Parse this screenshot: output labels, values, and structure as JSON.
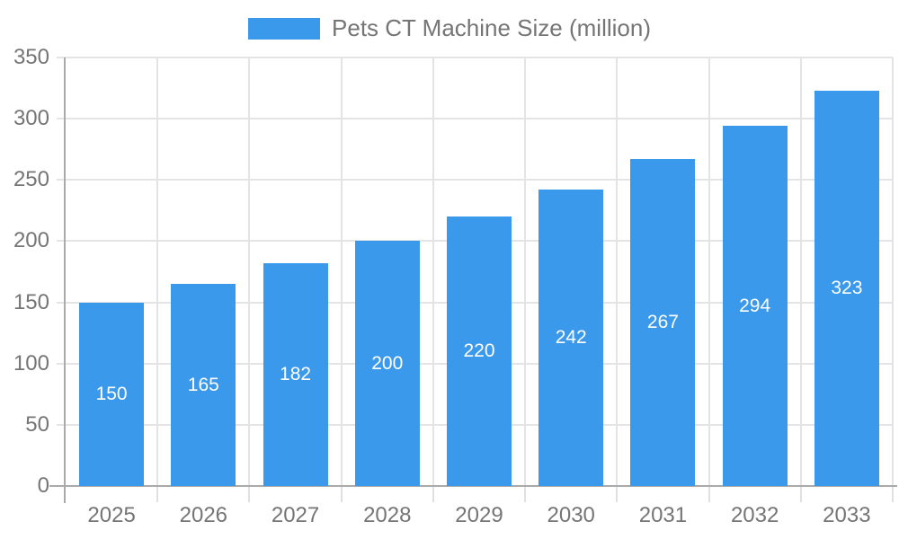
{
  "legend": {
    "label": "Pets CT Machine Size (million)"
  },
  "chart_data": {
    "type": "bar",
    "title": "",
    "categories": [
      "2025",
      "2026",
      "2027",
      "2028",
      "2029",
      "2030",
      "2031",
      "2032",
      "2033"
    ],
    "series": [
      {
        "name": "Pets CT Machine Size (million)",
        "values": [
          150,
          165,
          182,
          200,
          220,
          242,
          267,
          294,
          323
        ]
      }
    ],
    "bar_labels_shown": true,
    "xlabel": "",
    "ylabel": "",
    "ylim": [
      0,
      350
    ],
    "ytick_step": 50,
    "grid": true,
    "legend_position": "top-center"
  },
  "colors": {
    "bar": "#3b99ec",
    "axis": "#aaaaaa",
    "grid": "#e4e4e4",
    "tick_label": "#757575",
    "value_label": "#ffffff"
  }
}
